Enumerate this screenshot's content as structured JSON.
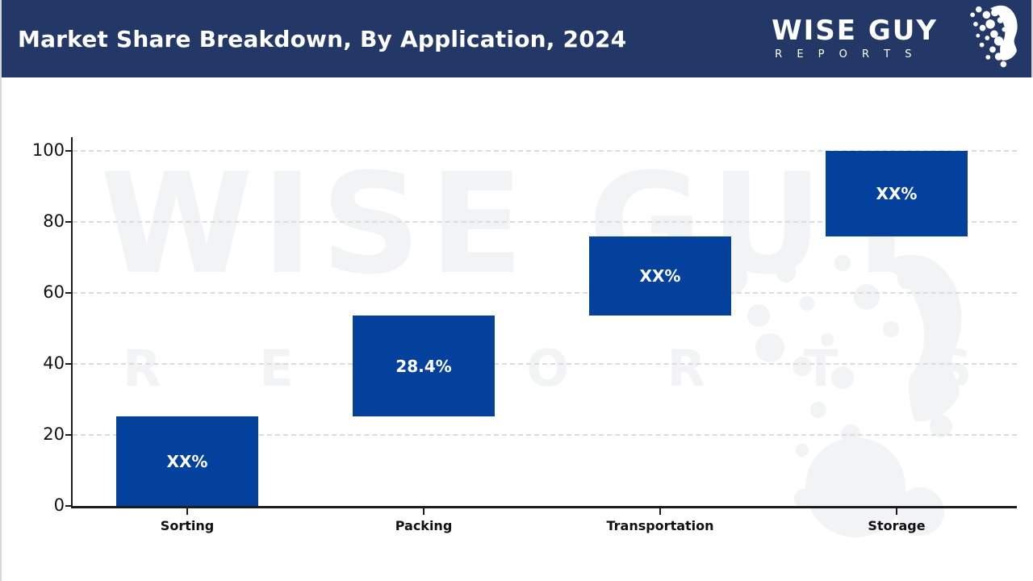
{
  "header": {
    "title": "Market Share Breakdown, By Application, 2024",
    "logo": {
      "primary": "WISE GUY",
      "secondary": "R E P O R T S"
    }
  },
  "watermark": {
    "primary": "WISE GUY",
    "secondary": "R E P O R T S"
  },
  "chart_data": {
    "type": "bar",
    "subtype": "waterfall",
    "title": "Market Share Breakdown, By Application, 2024",
    "categories": [
      "Sorting",
      "Packing",
      "Transportation",
      "Storage"
    ],
    "segments": [
      {
        "category": "Sorting",
        "start": 0,
        "end": 25.2,
        "label": "XX%"
      },
      {
        "category": "Packing",
        "start": 25.2,
        "end": 53.6,
        "label": "28.4%"
      },
      {
        "category": "Transportation",
        "start": 53.6,
        "end": 76.0,
        "label": "XX%"
      },
      {
        "category": "Storage",
        "start": 76.0,
        "end": 100.0,
        "label": "XX%"
      }
    ],
    "xlabel": "",
    "ylabel": "",
    "yticks": [
      0,
      20,
      40,
      60,
      80,
      100
    ],
    "ylim": [
      0,
      104
    ],
    "grid": "horizontal-dashed",
    "legend": "none",
    "bar_color": "#04419c",
    "label_color": "#ffffff"
  },
  "colors": {
    "header_bg": "#233866",
    "grid": "#dcdcdc",
    "axis": "#1c1c1c",
    "watermark": "#f2f3f5",
    "page_bg": "#ffffff",
    "border": "#d6d6da"
  }
}
